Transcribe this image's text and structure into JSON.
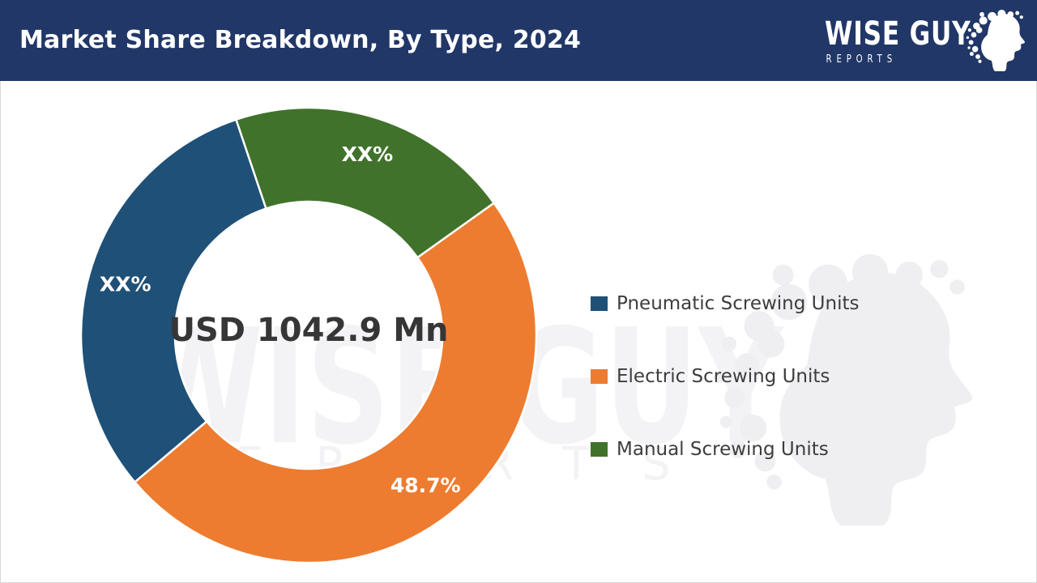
{
  "header": {
    "title": "Market Share Breakdown, By Type, 2024",
    "logo": {
      "line1": "WISE GUY",
      "line2": "REPORTS"
    }
  },
  "watermark": {
    "line1": "WISE GUY",
    "line2": "REPORTS"
  },
  "chart_data": {
    "type": "pie",
    "subtype": "donut",
    "title": "Market Share Breakdown, By Type, 2024",
    "center_label": "USD 1042.9 Mn",
    "start_bearing_deg": -18.6,
    "direction": "clockwise",
    "segments": [
      {
        "name": "Manual Screwing Units",
        "value_pct": 20.3,
        "display_label": "XX%",
        "color": "#41722b"
      },
      {
        "name": "Electric Screwing Units",
        "value_pct": 48.7,
        "display_label": "48.7%",
        "color": "#ed7c30"
      },
      {
        "name": "Pneumatic Screwing Units",
        "value_pct": 31.0,
        "display_label": "XX%",
        "color": "#1f5077"
      }
    ],
    "legend_position": "right"
  },
  "legend": {
    "items": [
      {
        "label": "Pneumatic Screwing Units",
        "color": "#1f5077"
      },
      {
        "label": "Electric Screwing Units",
        "color": "#ed7c30"
      },
      {
        "label": "Manual Screwing Units",
        "color": "#41722b"
      }
    ]
  },
  "theme": {
    "header-bg": "#213767",
    "watermark": "#f3f3f6",
    "watermark-face": "#efeff2",
    "text-dark": "#363636"
  }
}
